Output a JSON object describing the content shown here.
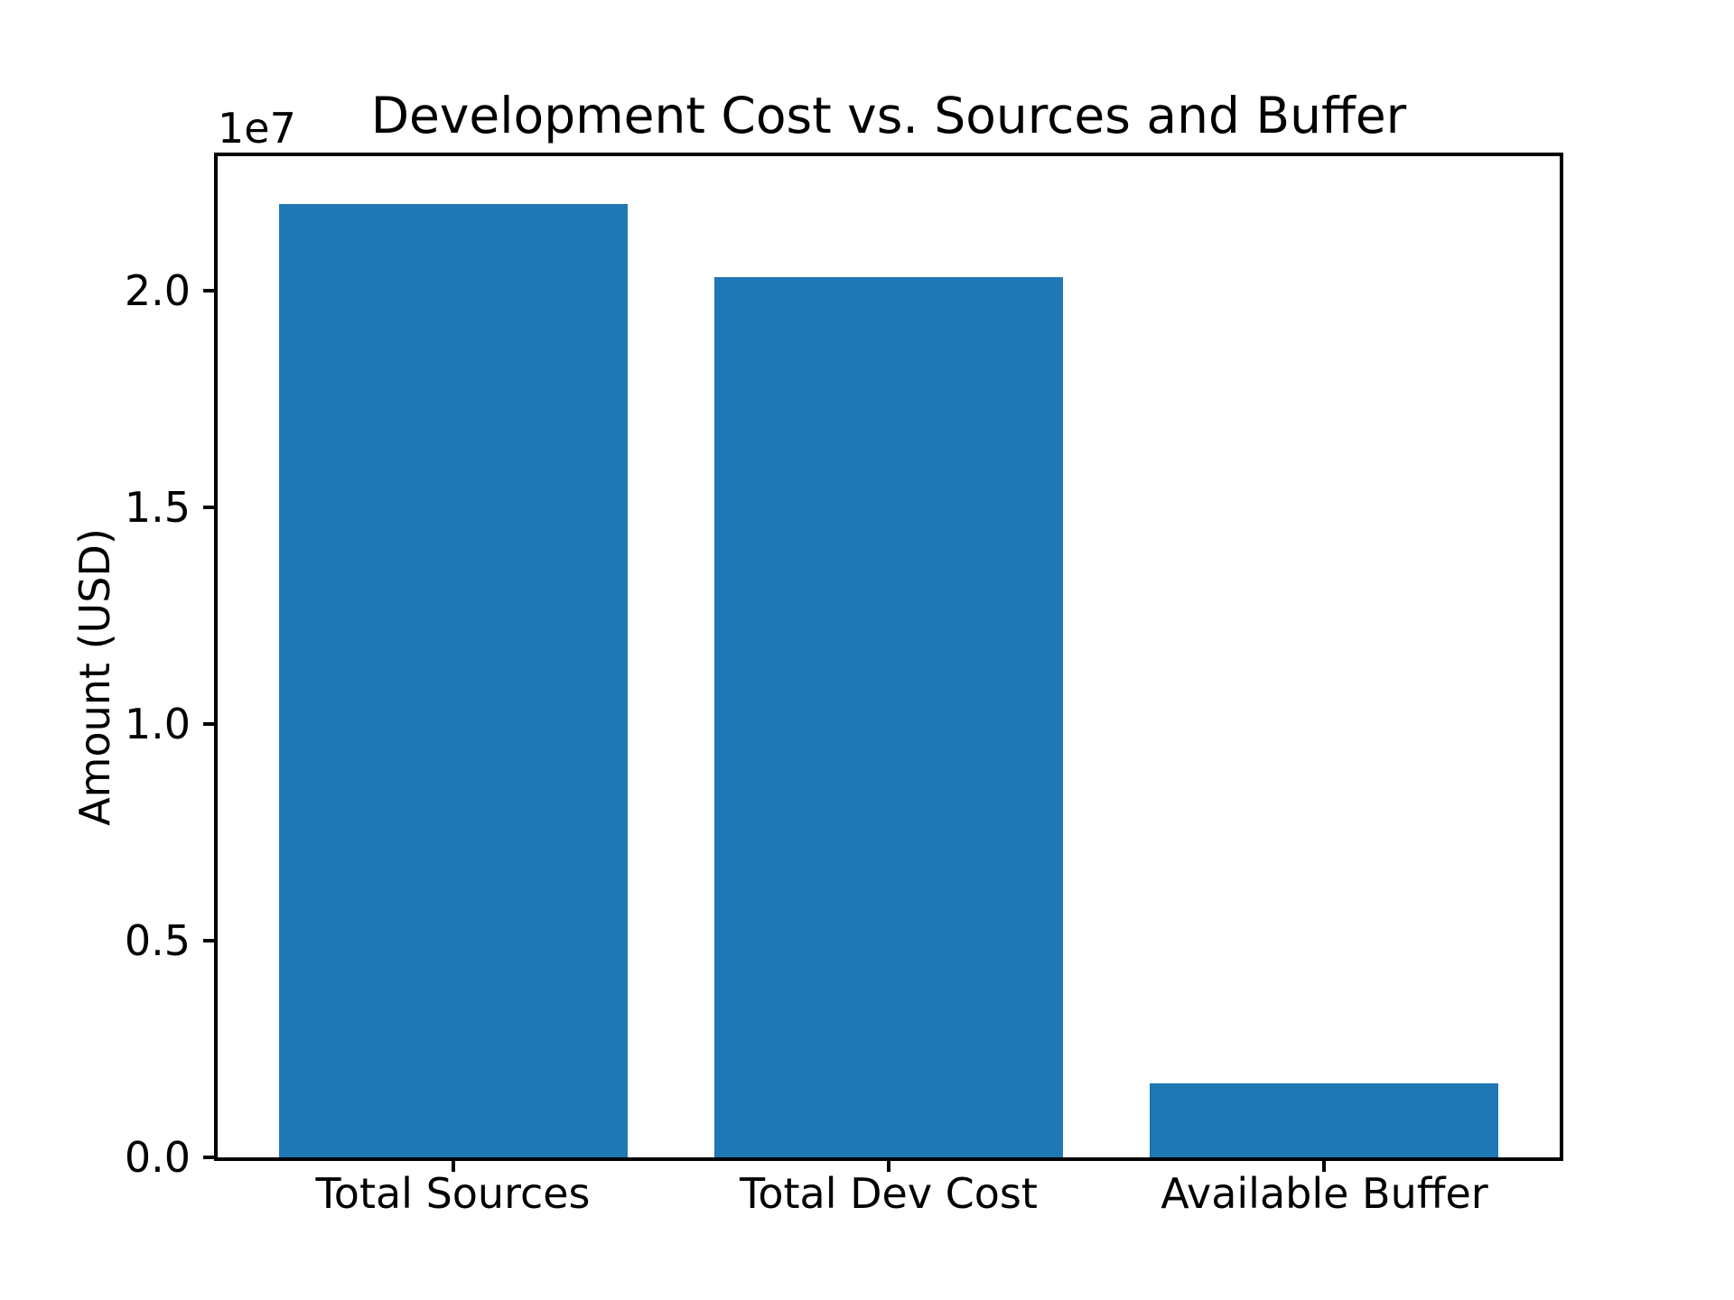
{
  "chart_data": {
    "type": "bar",
    "title": "Development Cost vs. Sources and Buffer",
    "xlabel": "",
    "ylabel": "Amount (USD)",
    "y_offset_label": "1e7",
    "categories": [
      "Total Sources",
      "Total Dev Cost",
      "Available Buffer"
    ],
    "values": [
      22000000,
      20300000,
      1700000
    ],
    "bar_color": "#1f77b4",
    "bar_width_fraction": 0.8,
    "ylim": [
      0,
      23100000
    ],
    "yticks": [
      {
        "value": 0,
        "label": "0.0"
      },
      {
        "value": 5000000,
        "label": "0.5"
      },
      {
        "value": 10000000,
        "label": "1.0"
      },
      {
        "value": 15000000,
        "label": "1.5"
      },
      {
        "value": 20000000,
        "label": "2.0"
      }
    ],
    "grid": false,
    "legend": false
  }
}
